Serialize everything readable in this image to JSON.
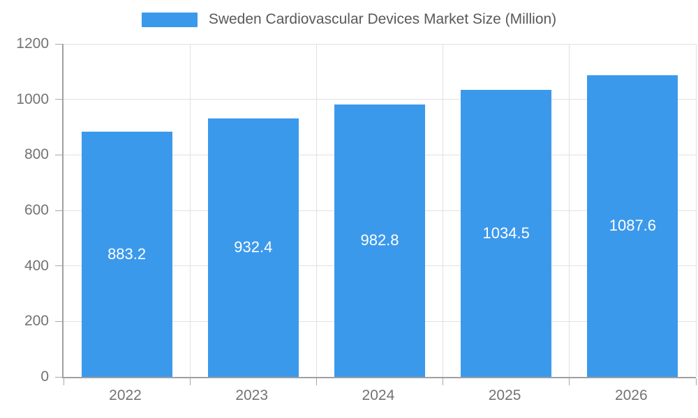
{
  "chart_data": {
    "type": "bar",
    "title": "Sweden Cardiovascular Devices Market Size (Million)",
    "categories": [
      "2022",
      "2023",
      "2024",
      "2025",
      "2026"
    ],
    "values": [
      883.2,
      932.4,
      982.8,
      1034.5,
      1087.6
    ],
    "xlabel": "",
    "ylabel": "",
    "ylim": [
      0,
      1200
    ],
    "yticks": [
      0,
      200,
      400,
      600,
      800,
      1000,
      1200
    ],
    "grid": true,
    "legend_position": "top"
  },
  "colors": {
    "bar": "#3B99EC",
    "value_label": "#ffffff",
    "axis_line": "#a0a0a0",
    "grid_line": "#e1e1e1",
    "tick_text": "#737373",
    "legend_text": "#595959",
    "background": "#ffffff"
  }
}
